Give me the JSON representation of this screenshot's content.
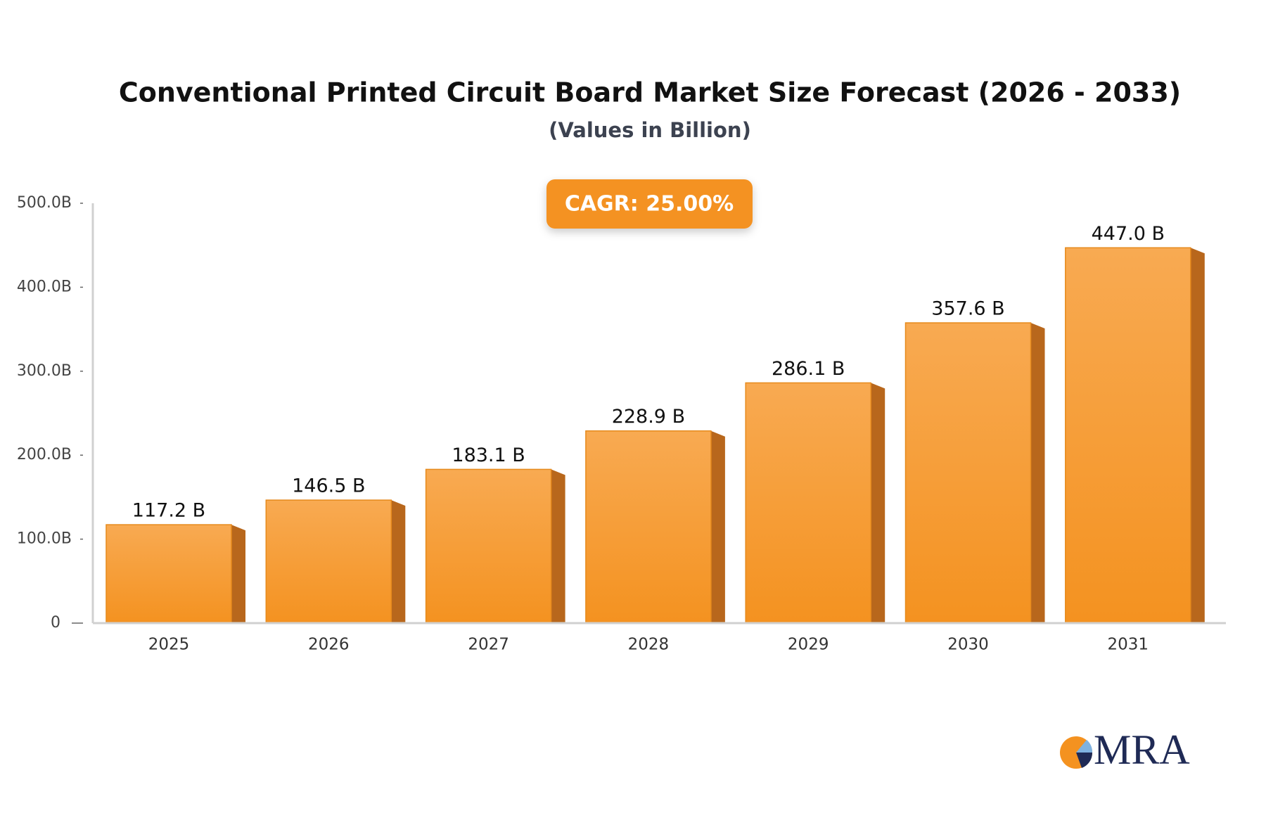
{
  "chart_data": {
    "type": "bar",
    "title": "Conventional Printed Circuit Board Market Size Forecast (2026 - 2033)",
    "subtitle": "(Values in Billion)",
    "annotation": "CAGR: 25.00%",
    "logo": "MRA",
    "categories": [
      "2025",
      "2026",
      "2027",
      "2028",
      "2029",
      "2030",
      "2031"
    ],
    "values": [
      117.2,
      146.5,
      183.1,
      228.9,
      286.1,
      357.6,
      447.0
    ],
    "value_labels": [
      "117.2 B",
      "146.5 B",
      "183.1 B",
      "228.9 B",
      "286.1 B",
      "357.6 B",
      "447.0 B"
    ],
    "color": "#f7a140",
    "ylim": [
      0,
      500
    ],
    "yticks": [
      0,
      {
        "value": 100,
        "label": "100.0B"
      },
      {
        "value": 200,
        "label": "200.0B"
      },
      {
        "value": 300,
        "label": "300.0B"
      },
      {
        "value": 400,
        "label": "400.0B"
      },
      {
        "value": 500,
        "label": "500.0B"
      }
    ]
  }
}
